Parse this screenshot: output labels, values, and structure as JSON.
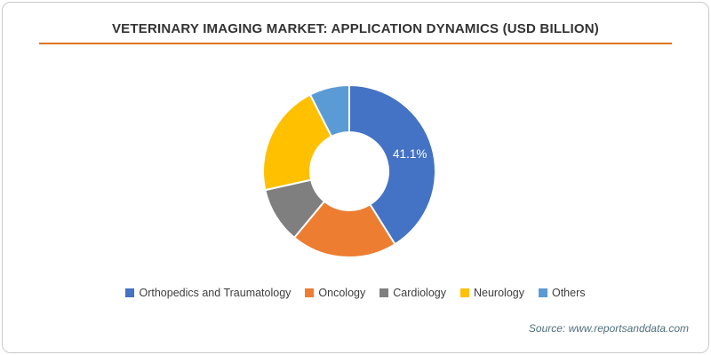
{
  "header": {
    "title": "VETERINARY IMAGING MARKET: APPLICATION DYNAMICS (USD BILLION)"
  },
  "footer": {
    "source": "Source: www.reportsanddata.com"
  },
  "colors": {
    "accent_rule": "#e0731d",
    "title_text": "#333333",
    "source_text": "#50707e",
    "card_border": "#c9c9c9",
    "data_label_text": "#ffffff"
  },
  "chart_data": {
    "type": "pie",
    "subtype": "donut",
    "title": "VETERINARY IMAGING MARKET: APPLICATION DYNAMICS (USD BILLION)",
    "categories": [
      "Orthopedics and Traumatology",
      "Oncology",
      "Cardiology",
      "Neurology",
      "Others"
    ],
    "values": [
      41.1,
      19.9,
      10.5,
      21.0,
      7.5
    ],
    "colors": [
      "#4472c4",
      "#ed7d31",
      "#7f7f7f",
      "#ffc000",
      "#5b9bd5"
    ],
    "data_labels": [
      {
        "index": 0,
        "text": "41.1%"
      }
    ],
    "legend_position": "bottom",
    "start_angle": 0,
    "direction": "clockwise"
  }
}
